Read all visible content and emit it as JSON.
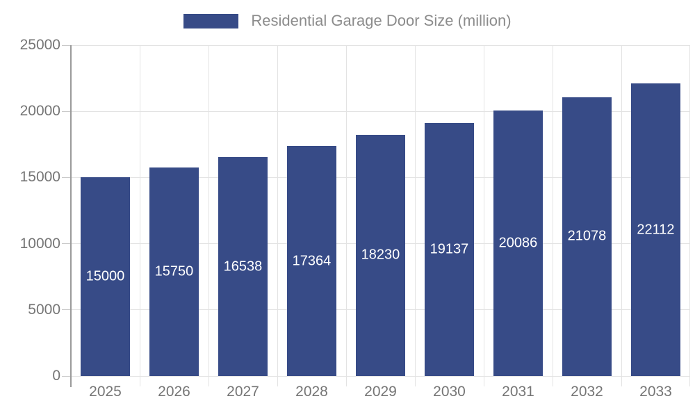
{
  "legend": {
    "label": "Residential Garage Door Size (million)"
  },
  "chart_data": {
    "type": "bar",
    "title": "Residential Garage Door Size (million)",
    "categories": [
      "2025",
      "2026",
      "2027",
      "2028",
      "2029",
      "2030",
      "2031",
      "2032",
      "2033"
    ],
    "values": [
      15000,
      15750,
      16538,
      17364,
      18230,
      19137,
      20086,
      21078,
      22112
    ],
    "xlabel": "",
    "ylabel": "",
    "ylim": [
      0,
      25000
    ],
    "yticks": [
      0,
      5000,
      10000,
      15000,
      20000,
      25000
    ],
    "grid": true,
    "legend_position": "top",
    "bar_label_color": "#ffffff"
  },
  "colors": {
    "bar": "#374B87",
    "grid": "#e3e3e3",
    "axis_line": "#9a9a9a",
    "tick": "#c9c9c9",
    "axis_text": "#757575",
    "legend_text": "#8c8c8c",
    "background": "#ffffff"
  }
}
